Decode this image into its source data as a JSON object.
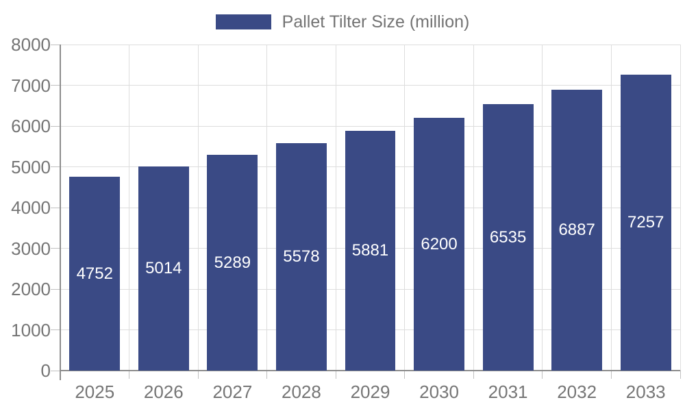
{
  "chart_data": {
    "type": "bar",
    "legend_label": "Pallet Tilter Size (million)",
    "categories": [
      "2025",
      "2026",
      "2027",
      "2028",
      "2029",
      "2030",
      "2031",
      "2032",
      "2033"
    ],
    "values": [
      4752,
      5014,
      5289,
      5578,
      5881,
      6200,
      6535,
      6887,
      7257
    ],
    "title": "",
    "xlabel": "",
    "ylabel": "",
    "ylim": [
      0,
      8000
    ],
    "yticks": [
      0,
      1000,
      2000,
      3000,
      4000,
      5000,
      6000,
      7000,
      8000
    ],
    "grid": true,
    "legend_position": "top-center",
    "bar_color": "#3a4a85",
    "value_label_color": "#ffffff",
    "axis_color": "#8c8c8c",
    "grid_color": "#dddddd",
    "minor_tick_color": "#c0c0c0",
    "tick_label_color": "#757575",
    "legend_text_color": "#737373",
    "background_color": "#ffffff"
  }
}
